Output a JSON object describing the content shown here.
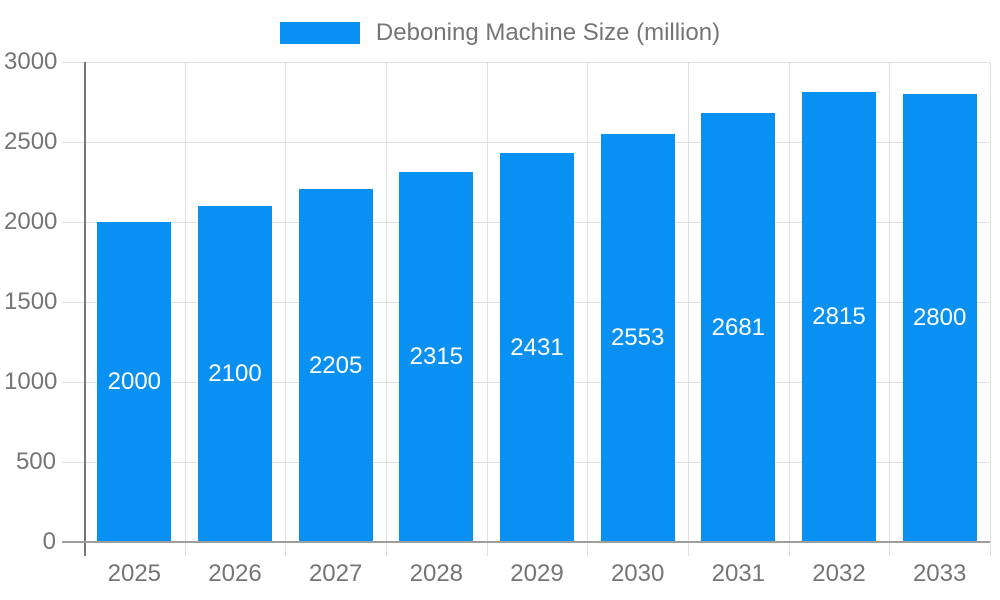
{
  "legend": {
    "label": "Deboning Machine Size (million)"
  },
  "chart_data": {
    "type": "bar",
    "title": "Deboning Machine Size (million)",
    "categories": [
      "2025",
      "2026",
      "2027",
      "2028",
      "2029",
      "2030",
      "2031",
      "2032",
      "2033"
    ],
    "series": [
      {
        "name": "Deboning Machine Size (million)",
        "values": [
          2000,
          2100,
          2205,
          2315,
          2431,
          2553,
          2681,
          2815,
          2800
        ]
      }
    ],
    "value_labels": [
      "2000",
      "2100",
      "2205",
      "2315",
      "2431",
      "2553",
      "2681",
      "2815",
      "2800"
    ],
    "xlabel": "",
    "ylabel": "",
    "ylim": [
      0,
      3000
    ],
    "yticks": [
      0,
      500,
      1000,
      1500,
      2000,
      2500,
      3000
    ],
    "grid": true,
    "legend_position": "top-center",
    "colors": {
      "bar": "#0890f3",
      "value_label": "#ffffff",
      "axis_text": "#757575",
      "grid_line": "#e0e0e0",
      "x_axis_line": "#9e9e9e",
      "y_axis_line": "#757575"
    }
  }
}
